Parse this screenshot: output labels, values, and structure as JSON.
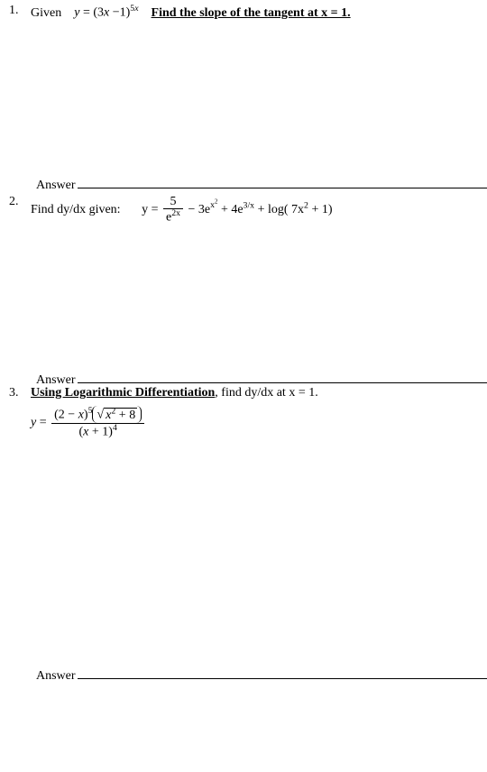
{
  "colors": {
    "text": "#000000",
    "background": "#ffffff"
  },
  "font": {
    "family": "Times New Roman",
    "size_pt": 11
  },
  "problems": {
    "p1": {
      "number": "1.",
      "given_label": "Given",
      "equation_html": "<span class='it'>y</span> = (3<span class='it'>x</span> &minus;1)<sup>5<span class='it'>x</span></sup>",
      "task": "Find the slope of the tangent at x = 1.",
      "answer_label": "Answer"
    },
    "p2": {
      "number": "2.",
      "prompt": "Find dy/dx given:",
      "equation_html": "y = <span class='frac'><span class='fn'>5</span><span class='fd'>e<sup>2x</sup></span></span> &minus; 3e<sup>x<sup>2</sup></sup> + 4e<sup>3/x</sup> + log( 7x<sup>2</sup> + 1)",
      "answer_label": "Answer"
    },
    "p3": {
      "number": "3.",
      "instruction_lead": "Using Logarithmic Differentiation",
      "instruction_tail": ", find dy/dx at x = 1.",
      "equation_html": "<span class='it'>y</span> = <span class='frac'><span class='fn'>(2 &minus; <span class='it'>x</span>)<sup>5</sup><span class='paren-big'><span class='sqrt'>&radic;<span class='rad'><span class='it'>x</span><sup>2</sup> + 8</span></span></span></span><span class='fd'>(<span class='it'>x</span> + 1)<sup>4</sup></span></span>",
      "answer_label": "Answer"
    }
  }
}
